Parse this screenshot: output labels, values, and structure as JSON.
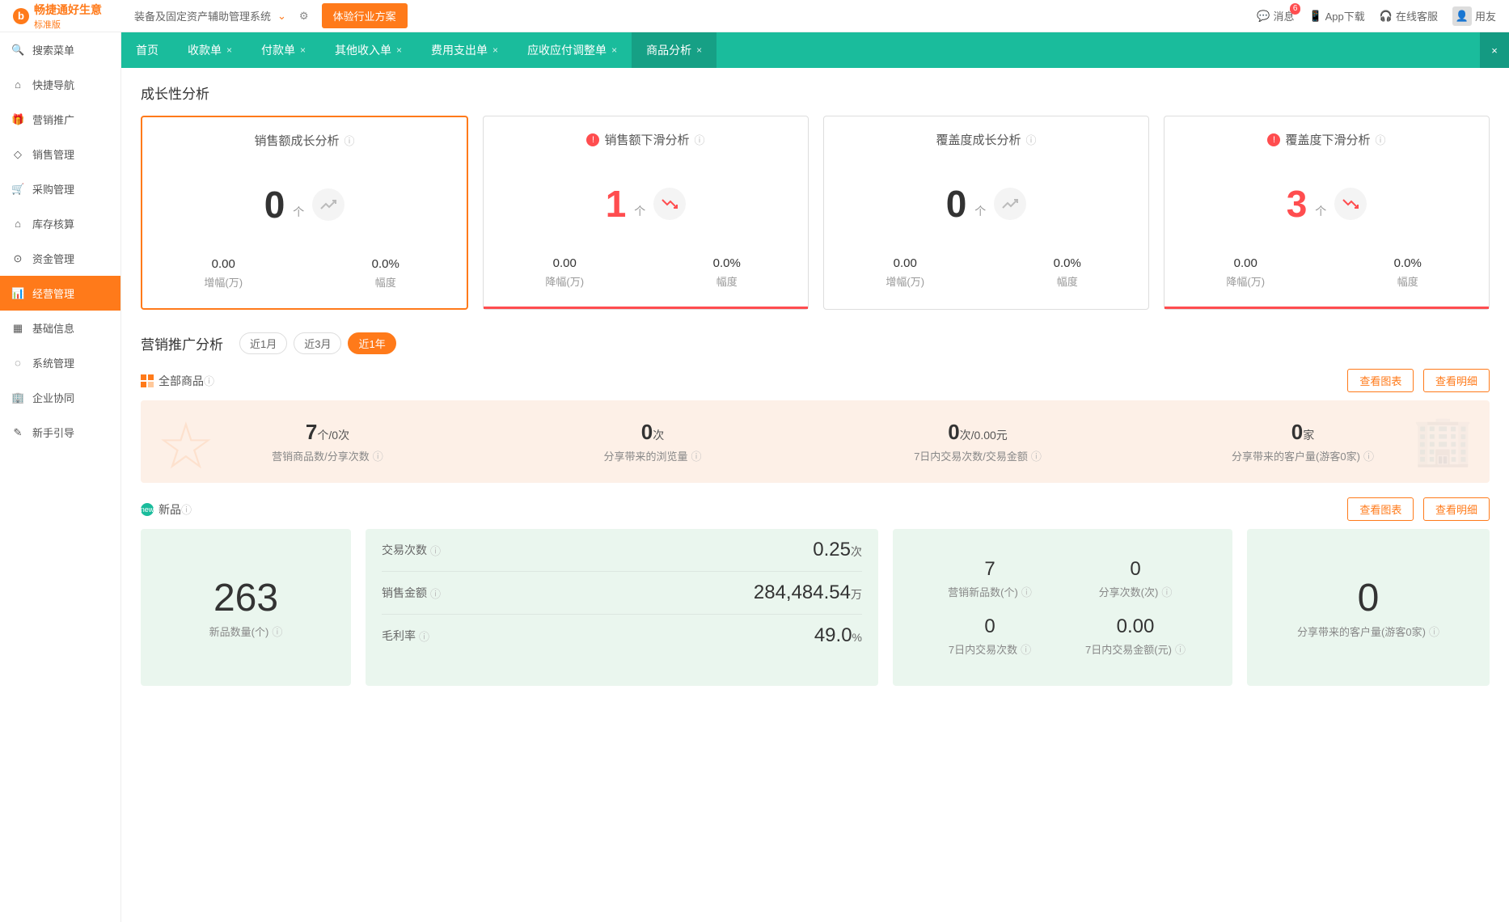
{
  "brand": {
    "name": "畅捷通好生意",
    "edition": "标准版"
  },
  "system_select": {
    "label": "装备及固定资产辅助管理系统"
  },
  "cta_button": "体验行业方案",
  "top_right": {
    "messages": {
      "label": "消息",
      "badge": "6"
    },
    "app": "App下载",
    "service": "在线客服",
    "user": "用友"
  },
  "sidebar": [
    {
      "icon": "🔍",
      "label": "搜索菜单"
    },
    {
      "icon": "⌂",
      "label": "快捷导航"
    },
    {
      "icon": "🎁",
      "label": "营销推广"
    },
    {
      "icon": "◇",
      "label": "销售管理"
    },
    {
      "icon": "🛒",
      "label": "采购管理"
    },
    {
      "icon": "⌂",
      "label": "库存核算"
    },
    {
      "icon": "⊙",
      "label": "资金管理"
    },
    {
      "icon": "📊",
      "label": "经营管理",
      "active": true
    },
    {
      "icon": "▦",
      "label": "基础信息"
    },
    {
      "icon": "◌",
      "label": "系统管理"
    },
    {
      "icon": "🏢",
      "label": "企业协同"
    },
    {
      "icon": "✎",
      "label": "新手引导"
    }
  ],
  "tabs": [
    {
      "label": "首页",
      "closable": false
    },
    {
      "label": "收款单",
      "closable": true
    },
    {
      "label": "付款单",
      "closable": true
    },
    {
      "label": "其他收入单",
      "closable": true
    },
    {
      "label": "费用支出单",
      "closable": true
    },
    {
      "label": "应收应付调整单",
      "closable": true
    },
    {
      "label": "商品分析",
      "closable": true,
      "active": true
    }
  ],
  "growth_section_title": "成长性分析",
  "growth_cards": [
    {
      "title": "销售额成长分析",
      "alert": false,
      "selected": true,
      "value": "0",
      "unit": "个",
      "red": false,
      "trend": "up",
      "m1v": "0.00",
      "m1l": "增幅(万)",
      "m2v": "0.0%",
      "m2l": "幅度"
    },
    {
      "title": "销售额下滑分析",
      "alert": true,
      "decline": true,
      "value": "1",
      "unit": "个",
      "red": true,
      "trend": "down",
      "m1v": "0.00",
      "m1l": "降幅(万)",
      "m2v": "0.0%",
      "m2l": "幅度"
    },
    {
      "title": "覆盖度成长分析",
      "alert": false,
      "value": "0",
      "unit": "个",
      "red": false,
      "trend": "up",
      "m1v": "0.00",
      "m1l": "增幅(万)",
      "m2v": "0.0%",
      "m2l": "幅度"
    },
    {
      "title": "覆盖度下滑分析",
      "alert": true,
      "decline": true,
      "value": "3",
      "unit": "个",
      "red": true,
      "trend": "down",
      "m1v": "0.00",
      "m1l": "降幅(万)",
      "m2v": "0.0%",
      "m2l": "幅度"
    }
  ],
  "marketing_section_title": "营销推广分析",
  "period_pills": [
    {
      "label": "近1月"
    },
    {
      "label": "近3月"
    },
    {
      "label": "近1年",
      "active": true
    }
  ],
  "all_products": {
    "title": "全部商品",
    "btn_chart": "查看图表",
    "btn_detail": "查看明细",
    "cols": [
      {
        "val": "7",
        "unit": "个/0次",
        "label": "营销商品数/分享次数"
      },
      {
        "val": "0",
        "unit": "次",
        "label": "分享带来的浏览量"
      },
      {
        "val": "0",
        "unit": "次/0.00元",
        "label": "7日内交易次数/交易金额"
      },
      {
        "val": "0",
        "unit": "家",
        "label": "分享带来的客户量(游客0家)"
      }
    ]
  },
  "new_products": {
    "title": "新品",
    "btn_chart": "查看图表",
    "btn_detail": "查看明细",
    "left": {
      "value": "263",
      "label": "新品数量(个)"
    },
    "mid": [
      {
        "label": "交易次数",
        "val": "0.25",
        "unit": "次"
      },
      {
        "label": "销售金额",
        "val": "284,484.54",
        "unit": "万"
      },
      {
        "label": "毛利率",
        "val": "49.0",
        "unit": "%"
      }
    ],
    "grid": [
      {
        "val": "7",
        "label": "营销新品数(个)"
      },
      {
        "val": "0",
        "label": "分享次数(次)"
      },
      {
        "val": "0",
        "label": "7日内交易次数"
      },
      {
        "val": "0.00",
        "label": "7日内交易金额(元)"
      }
    ],
    "right": {
      "value": "0",
      "label": "分享带来的客户量(游客0家)"
    }
  },
  "colors": {
    "primary": "#ff7a1a",
    "teal": "#1abc9c",
    "teal_dark": "#16a085",
    "danger": "#ff4d4f"
  }
}
